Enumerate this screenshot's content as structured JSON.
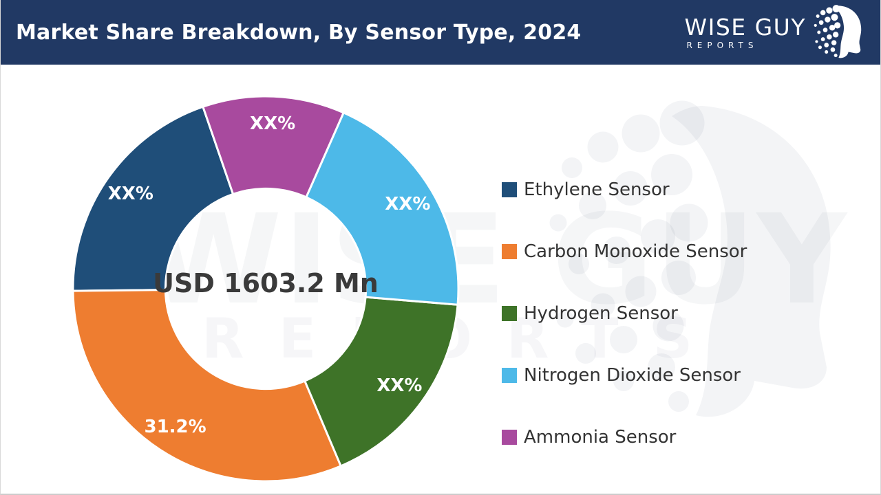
{
  "header": {
    "title": "Market Share Breakdown, By Sensor Type, 2024",
    "background_color": "#213964",
    "logo": {
      "wordmark": "WISE GUY",
      "subtitle": "REPORTS"
    }
  },
  "watermark": {
    "line1": "WISE GUY",
    "line2": "REPORTS"
  },
  "chart_data": {
    "type": "pie",
    "subtype": "donut",
    "title": "Market Share Breakdown, By Sensor Type, 2024",
    "center_label": "USD 1603.2 Mn",
    "legend_position": "right",
    "start_angle_deg": -19,
    "direction": "counterclockwise",
    "inner_radius_ratio": 0.52,
    "segments": [
      {
        "label": "Ethylene Sensor",
        "share_pct_display": "XX%",
        "share_pct_est": 19.9,
        "color": "#1F4E79"
      },
      {
        "label": "Carbon Monoxide Sensor",
        "share_pct_display": "31.2%",
        "share_pct_est": 31.2,
        "color": "#EE7D30"
      },
      {
        "label": "Hydrogen Sensor",
        "share_pct_display": "XX%",
        "share_pct_est": 17.3,
        "color": "#3E7328"
      },
      {
        "label": "Nitrogen Dioxide Sensor",
        "share_pct_display": "XX%",
        "share_pct_est": 19.7,
        "color": "#4DB9E8"
      },
      {
        "label": "Ammonia Sensor",
        "share_pct_display": "XX%",
        "share_pct_est": 11.9,
        "color": "#A84A9E"
      }
    ]
  }
}
